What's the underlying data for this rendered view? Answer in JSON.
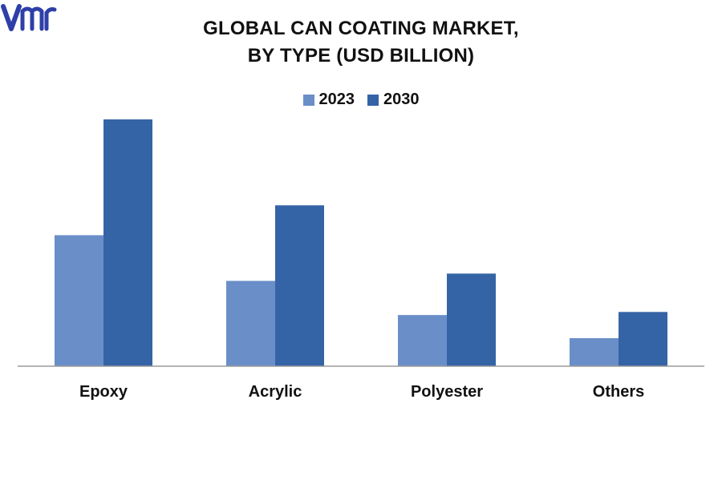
{
  "chart_data": {
    "type": "bar",
    "title_lines": [
      "GLOBAL CAN COATING MARKET,",
      "BY TYPE (USD BILLION)"
    ],
    "categories": [
      "Epoxy",
      "Acrylic",
      "Polyester",
      "Others"
    ],
    "series": [
      {
        "name": "2023",
        "color": "#6a8fc8",
        "values": [
          2.15,
          1.4,
          0.84,
          0.46
        ]
      },
      {
        "name": "2030",
        "color": "#3564a6",
        "values": [
          4.05,
          2.64,
          1.52,
          0.89
        ]
      }
    ],
    "ylim": [
      0,
      4.3
    ],
    "grid": false,
    "legend_position": "top-center",
    "xlabel": "",
    "ylabel": ""
  },
  "branding": {
    "logo_text": "vmr",
    "logo_color": "#2f3fa8"
  }
}
